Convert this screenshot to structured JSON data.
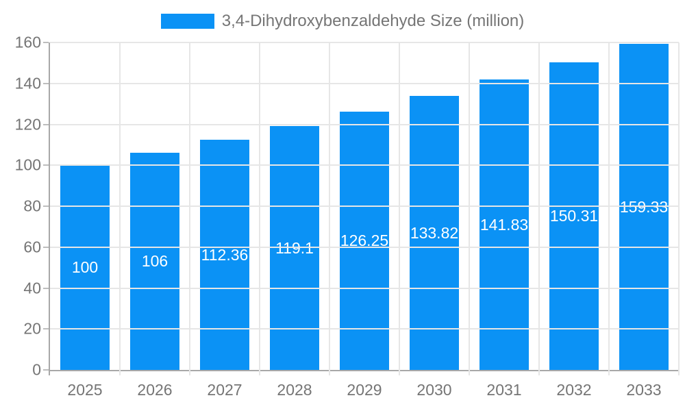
{
  "chart_data": {
    "type": "bar",
    "title": "3,4-Dihydroxybenzaldehyde Size (million)",
    "legend": {
      "label": "3,4-Dihydroxybenzaldehyde Size (million)",
      "position": "top"
    },
    "categories": [
      "2025",
      "2026",
      "2027",
      "2028",
      "2029",
      "2030",
      "2031",
      "2032",
      "2033"
    ],
    "values": [
      100,
      106,
      112.36,
      119.1,
      126.25,
      133.82,
      141.83,
      150.31,
      159.33
    ],
    "value_labels": [
      "100",
      "106",
      "112.36",
      "119.1",
      "126.25",
      "133.82",
      "141.83",
      "150.31",
      "159.33"
    ],
    "xlabel": "",
    "ylabel": "",
    "ylim": [
      0,
      160
    ],
    "yticks": [
      0,
      20,
      40,
      60,
      80,
      100,
      120,
      140,
      160
    ],
    "grid": "on",
    "colors": {
      "bar": "#0b92f5",
      "grid": "#e6e6e6",
      "axis": "#a8a8a8",
      "tick": "#bdbdbd",
      "axis_text": "#757575",
      "bar_label_text": "#ffffff",
      "background": "#ffffff"
    }
  }
}
